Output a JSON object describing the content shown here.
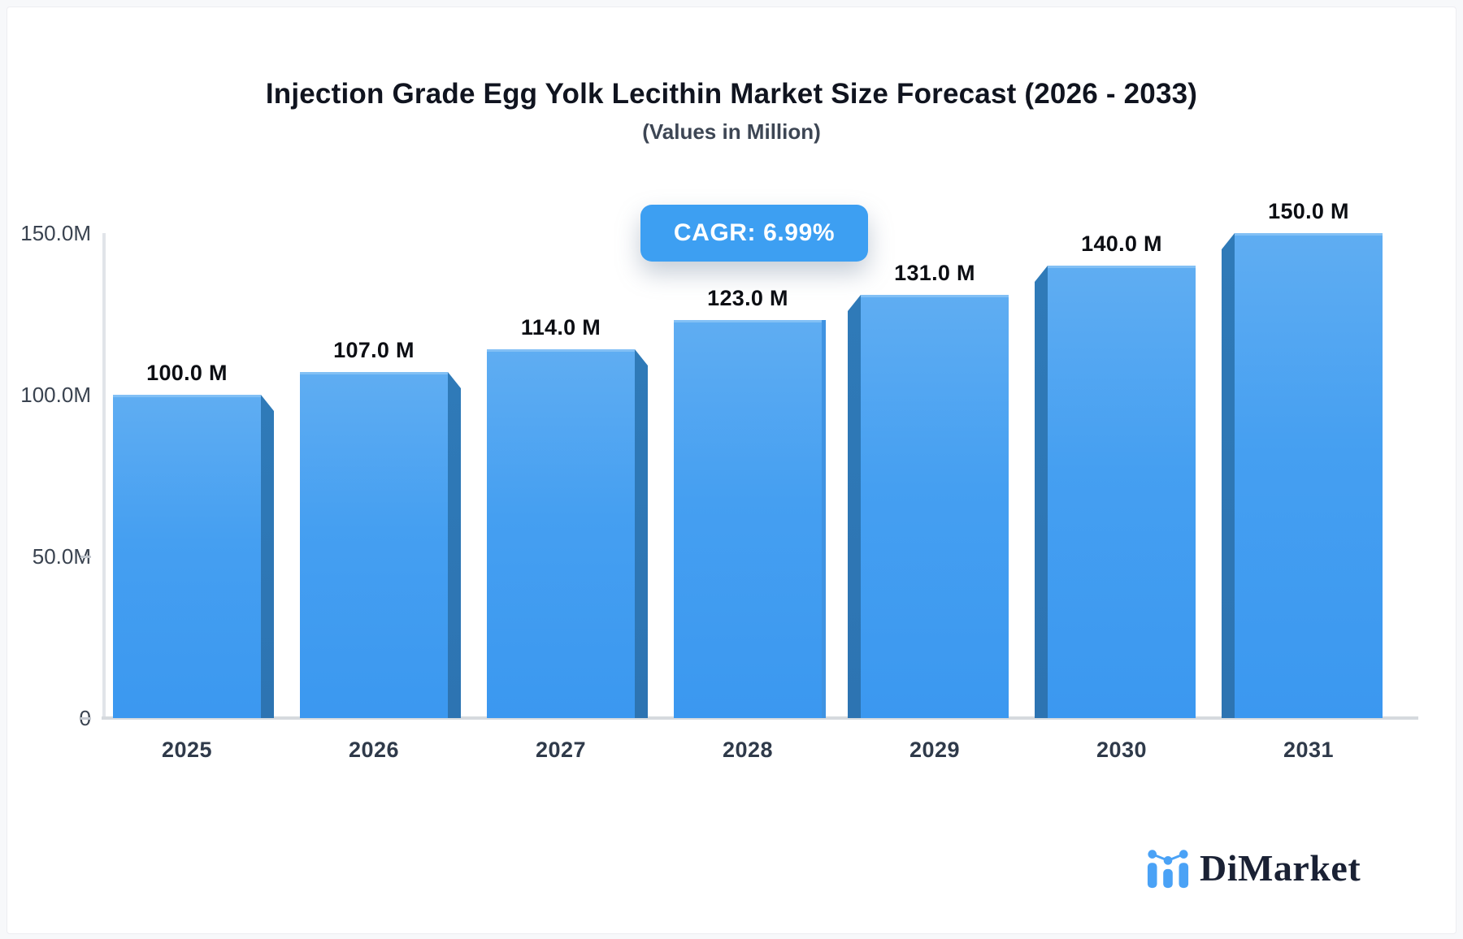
{
  "page": {
    "background_color": "#f7f8fa",
    "card_color": "#ffffff"
  },
  "header": {
    "title": "Injection Grade Egg Yolk Lecithin Market Size Forecast (2026 - 2033)",
    "subtitle": "(Values in Million)"
  },
  "badge": {
    "label": "CAGR: 6.99%",
    "background_color": "#3d9ff2",
    "text_color": "#ffffff"
  },
  "chart_data": {
    "type": "bar",
    "title": "Injection Grade Egg Yolk Lecithin Market Size Forecast (2026 - 2033)",
    "subtitle": "(Values in Million)",
    "unit": "Million",
    "cagr_percent": 6.99,
    "categories": [
      "2025",
      "2026",
      "2027",
      "2028",
      "2029",
      "2030",
      "2031"
    ],
    "values": [
      100.0,
      107.0,
      114.0,
      123.0,
      131.0,
      140.0,
      150.0
    ],
    "value_labels": [
      "100.0 M",
      "107.0 M",
      "114.0 M",
      "123.0 M",
      "131.0 M",
      "140.0 M",
      "150.0 M"
    ],
    "xlabel": "",
    "ylabel": "",
    "ylim": [
      0,
      150
    ],
    "y_ticks": [
      {
        "value": 150,
        "label": "150.0M"
      },
      {
        "value": 100,
        "label": "100.0M"
      },
      {
        "value": 50,
        "label": "50.0M"
      },
      {
        "value": 0,
        "label": "0"
      }
    ],
    "grid": false,
    "legend": false,
    "bar_style": "3d-beveled",
    "colors": {
      "bar_face_top": "#5fadf2",
      "bar_face_bottom": "#3b98f0",
      "bar_top_highlight": "#82c0f5",
      "bar_side_shadow": "#2d74b2",
      "axis_line": "#e1e4e9",
      "baseline": "#d6dade",
      "tick_text": "#3a4350",
      "value_text": "#0c0e13"
    }
  },
  "branding": {
    "name": "DiMarket",
    "icon": "bar-chart-logo-icon",
    "icon_color": "#4aa2f6",
    "text_color": "#1a2134"
  }
}
